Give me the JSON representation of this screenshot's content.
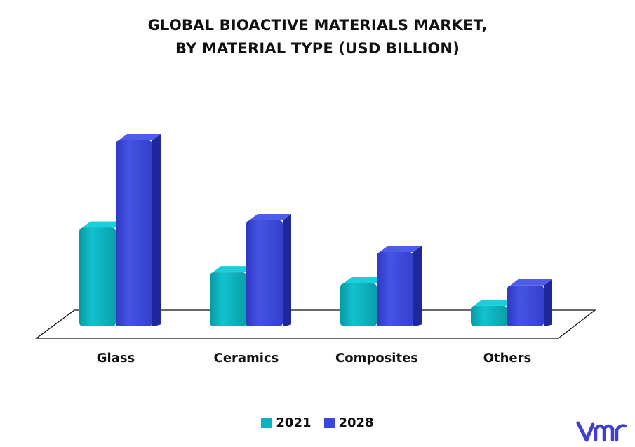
{
  "title_line1": "GLOBAL BIOACTIVE MATERIALS MARKET,",
  "title_line2": "BY MATERIAL TYPE (USD BILLION)",
  "colors": {
    "s2021": "#0BB3BF",
    "s2028": "#3A46D6"
  },
  "chart_data": {
    "type": "bar",
    "title": "GLOBAL BIOACTIVE MATERIALS MARKET, BY MATERIAL TYPE (USD BILLION)",
    "categories": [
      "Glass",
      "Ceramics",
      "Composites",
      "Others"
    ],
    "series": [
      {
        "name": "2021",
        "values": [
          5.3,
          2.9,
          2.3,
          1.1
        ]
      },
      {
        "name": "2028",
        "values": [
          10.0,
          5.7,
          4.0,
          2.2
        ]
      }
    ],
    "xlabel": "",
    "ylabel": "",
    "grid": false,
    "legend": "bottom-center"
  },
  "logo_icon": "vmr-logo-icon"
}
